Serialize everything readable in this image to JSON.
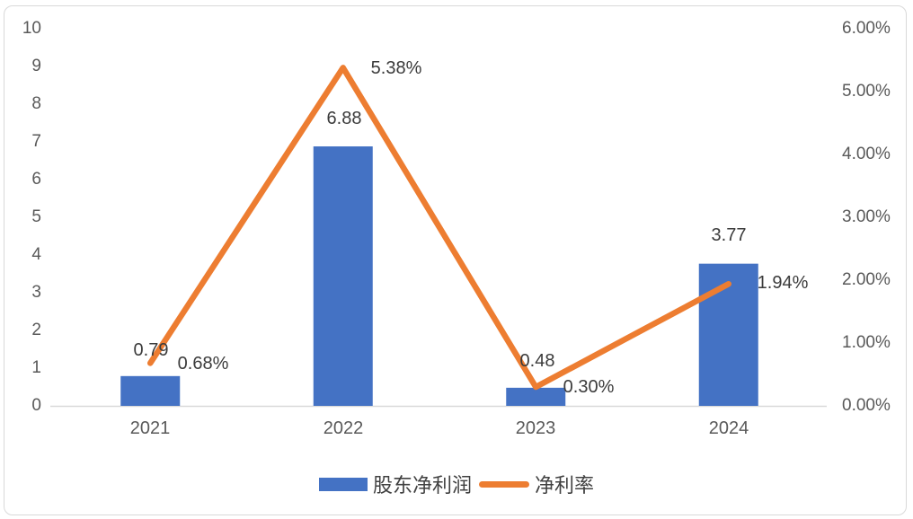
{
  "chart_data": {
    "type": "bar",
    "subtype": "combo-bar-line-dual-axis",
    "title": "",
    "categories": [
      "2021",
      "2022",
      "2023",
      "2024"
    ],
    "series": [
      {
        "name": "股东净利润",
        "type": "bar",
        "axis": "left",
        "color": "#4472C4",
        "values": [
          0.79,
          6.88,
          0.48,
          3.77
        ],
        "data_labels": [
          "0.79",
          "6.88",
          "0.48",
          "3.77"
        ]
      },
      {
        "name": "净利率",
        "type": "line",
        "axis": "right",
        "color": "#ED7D31",
        "values": [
          0.68,
          5.38,
          0.3,
          1.94
        ],
        "data_labels": [
          "0.68%",
          "5.38%",
          "0.30%",
          "1.94%"
        ]
      }
    ],
    "left_axis": {
      "min": 0,
      "max": 10,
      "tick_step": 1,
      "ticks": [
        "10",
        "9",
        "8",
        "7",
        "6",
        "5",
        "4",
        "3",
        "2",
        "1",
        "0"
      ]
    },
    "right_axis": {
      "min": 0,
      "max": 6,
      "tick_step": 1,
      "unit": "%",
      "ticks": [
        "6.00%",
        "5.00%",
        "4.00%",
        "3.00%",
        "2.00%",
        "1.00%",
        "0.00%"
      ]
    },
    "grid": "off",
    "legend": {
      "position": "bottom",
      "items": [
        {
          "label": "股东净利润",
          "swatch": "bar",
          "color": "#4472C4"
        },
        {
          "label": "净利率",
          "swatch": "line",
          "color": "#ED7D31"
        }
      ]
    }
  },
  "colors": {
    "bar": "#4472C4",
    "line": "#ED7D31",
    "axis_line": "#D9D9D9",
    "border": "#D9D9D9",
    "tick_text": "#595959",
    "label_text": "#3B3B3B",
    "background": "#FFFFFF"
  }
}
